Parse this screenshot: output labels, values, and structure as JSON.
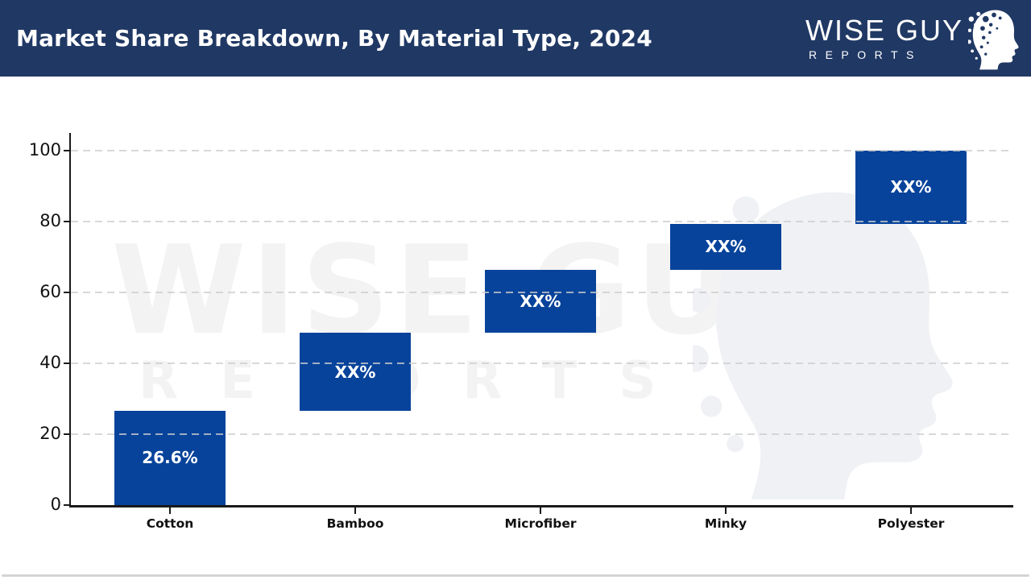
{
  "header": {
    "title": "Market Share Breakdown, By Material Type, 2024",
    "logo": {
      "wordmark": "WISE GUY",
      "subtext": "REPORTS"
    }
  },
  "watermark": {
    "line1": "WISE GUY",
    "line2": "REPORTS"
  },
  "chart_data": {
    "type": "bar",
    "variant": "waterfall",
    "title": "Market Share Breakdown, By Material Type, 2024",
    "categories": [
      "Cotton",
      "Bamboo",
      "Microfiber",
      "Minky",
      "Polyester"
    ],
    "segments": [
      {
        "category": "Cotton",
        "start": 0,
        "end": 26.6,
        "label": "26.6%"
      },
      {
        "category": "Bamboo",
        "start": 26.6,
        "end": 48.6,
        "label": "XX%"
      },
      {
        "category": "Microfiber",
        "start": 48.6,
        "end": 66.4,
        "label": "XX%"
      },
      {
        "category": "Minky",
        "start": 66.4,
        "end": 79.4,
        "label": "XX%"
      },
      {
        "category": "Polyester",
        "start": 79.4,
        "end": 100,
        "label": "XX%"
      }
    ],
    "xlabel": "",
    "ylabel": "",
    "ylim": [
      0,
      100
    ],
    "yticks": [
      0,
      20,
      40,
      60,
      80,
      100
    ],
    "grid": "horizontal-dashed",
    "legend": "none",
    "bar_color": "#07439B",
    "bar_label_color": "#FFFFFF",
    "axis_color": "#1A1A1A",
    "gridline_color": "#D9D9D9",
    "header_color": "#203864"
  }
}
